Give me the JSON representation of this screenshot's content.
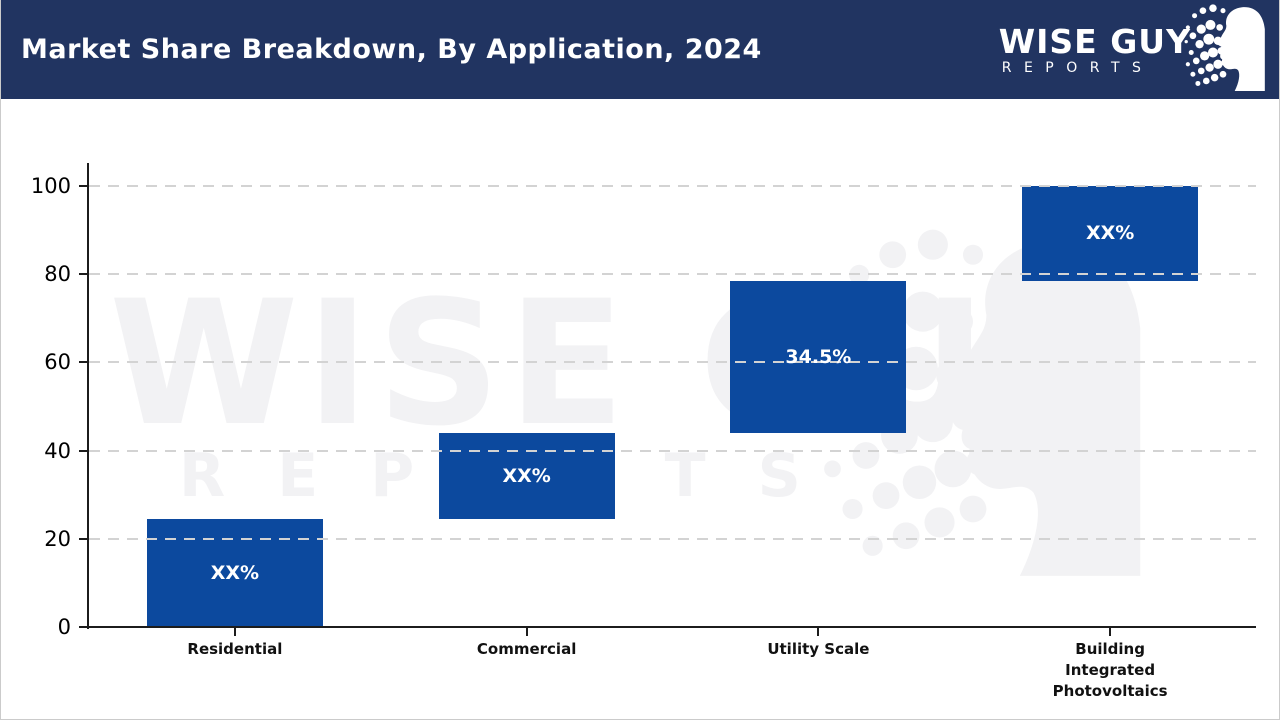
{
  "header": {
    "title": "Market Share Breakdown, By Application, 2024",
    "logo": {
      "wordmark": "WISE GUY",
      "subtext": "REPORTS",
      "face_icon": "dotted-head-profile-icon"
    }
  },
  "watermark": {
    "line1": "WISE GU",
    "line2": "REPORTS",
    "face_icon": "dotted-head-profile-icon"
  },
  "brand_colors": {
    "header_navy": "#213461",
    "bar_blue": "#0c499e",
    "watermark_gray": "#f2f2f4"
  },
  "chart_data": {
    "type": "bar",
    "subtype": "floating-waterfall",
    "title": "Market Share Breakdown, By Application, 2024",
    "xlabel": "",
    "ylabel": "",
    "categories": [
      "Residential",
      "Commercial",
      "Utility Scale",
      "Building Integrated Photovoltaics"
    ],
    "segments": [
      {
        "category": "Residential",
        "display_lines": [
          "Residential"
        ],
        "start": 0,
        "end": 24.5,
        "value": 24.5,
        "label": "XX%"
      },
      {
        "category": "Commercial",
        "display_lines": [
          "Commercial"
        ],
        "start": 24.5,
        "end": 44,
        "value": 19.5,
        "label": "XX%"
      },
      {
        "category": "Utility Scale",
        "display_lines": [
          "Utility Scale"
        ],
        "start": 44,
        "end": 78.5,
        "value": 34.5,
        "label": "34.5%"
      },
      {
        "category": "Building Integrated Photovoltaics",
        "display_lines": [
          "Building",
          "Integrated",
          "Photovoltaics"
        ],
        "start": 78.5,
        "end": 100,
        "value": 21.5,
        "label": "XX%"
      }
    ],
    "yticks": [
      0,
      20,
      40,
      60,
      80,
      100
    ],
    "ylim": [
      0,
      105
    ],
    "grid": true,
    "legend": false
  }
}
